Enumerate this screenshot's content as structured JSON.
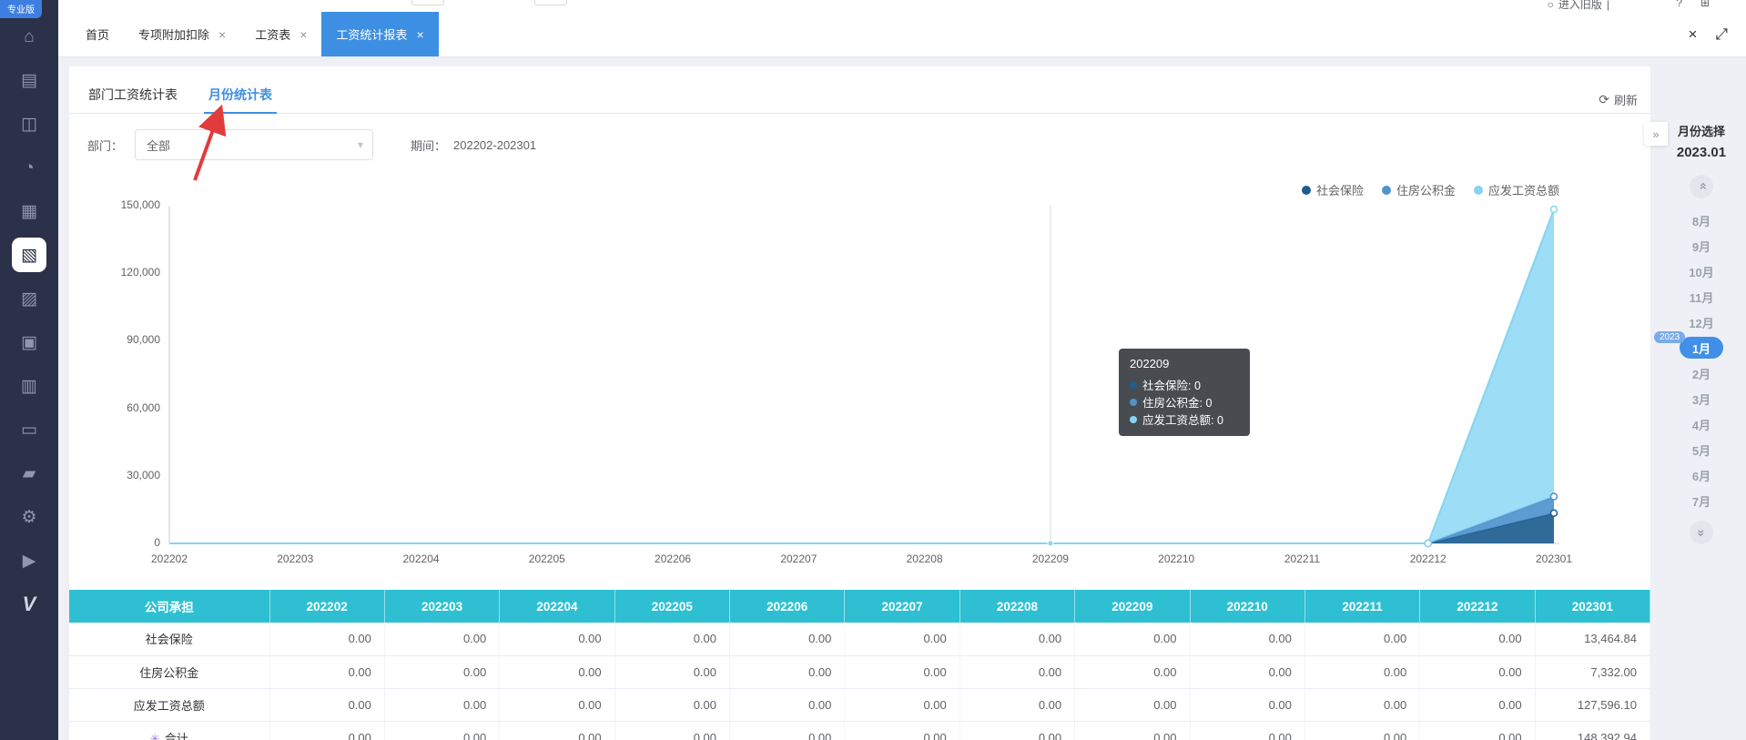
{
  "app": {
    "edition_badge": "专业版"
  },
  "top_bar": {
    "enter_old_version": "进入旧版",
    "divider": "|",
    "user_icon": "○",
    "help_icon": "?",
    "grid_icon": "⊞"
  },
  "sidebar": {
    "items": [
      {
        "name": "home",
        "glyph": "⌂"
      },
      {
        "name": "vouchers",
        "glyph": "▤"
      },
      {
        "name": "analytics",
        "glyph": "◫"
      },
      {
        "name": "tax-meter",
        "glyph": "◔"
      },
      {
        "name": "bank",
        "glyph": "▦"
      },
      {
        "name": "salary-reports",
        "glyph": "▧",
        "active": true
      },
      {
        "name": "inventory",
        "glyph": "▨"
      },
      {
        "name": "assets",
        "glyph": "▣"
      },
      {
        "name": "ledger",
        "glyph": "▥"
      },
      {
        "name": "invoice-device",
        "glyph": "▭"
      },
      {
        "name": "workbench",
        "glyph": "▰"
      },
      {
        "name": "settings",
        "glyph": "⚙"
      },
      {
        "name": "tutorial",
        "glyph": "▶"
      },
      {
        "name": "brand-v",
        "glyph": "V"
      }
    ]
  },
  "tab_bar": {
    "tabs": [
      {
        "name": "home",
        "label": "首页",
        "closable": false,
        "active": false
      },
      {
        "name": "special-deduction",
        "label": "专项附加扣除",
        "closable": true,
        "active": false
      },
      {
        "name": "salary-sheet",
        "label": "工资表",
        "closable": true,
        "active": false
      },
      {
        "name": "salary-report",
        "label": "工资统计报表",
        "closable": true,
        "active": true
      }
    ],
    "close_glyph": "×",
    "close_all_icon": "×",
    "fullscreen_icon": "⤢"
  },
  "sub_tabs": {
    "items": [
      {
        "name": "department-salary-stats",
        "label": "部门工资统计表",
        "active": false
      },
      {
        "name": "monthly-stats",
        "label": "月份统计表",
        "active": true
      }
    ]
  },
  "toolbar": {
    "refresh_icon": "⟳",
    "refresh_label": "刷新"
  },
  "filters": {
    "department_label": "部门：",
    "department_value": "全部",
    "dropdown_icon": "▾",
    "period_label": "期间：",
    "period_value": "202202-202301"
  },
  "chart_data": {
    "type": "area",
    "stacked": true,
    "title": "",
    "x": [
      "202202",
      "202203",
      "202204",
      "202205",
      "202206",
      "202207",
      "202208",
      "202209",
      "202210",
      "202211",
      "202212",
      "202301"
    ],
    "series": [
      {
        "name": "社会保险",
        "color": "#1d5d90",
        "values": [
          0,
          0,
          0,
          0,
          0,
          0,
          0,
          0,
          0,
          0,
          0,
          13464.84
        ]
      },
      {
        "name": "住房公积金",
        "color": "#4f94cd",
        "values": [
          0,
          0,
          0,
          0,
          0,
          0,
          0,
          0,
          0,
          0,
          0,
          7332.0
        ]
      },
      {
        "name": "应发工资总额",
        "color": "#85d4f2",
        "values": [
          0,
          0,
          0,
          0,
          0,
          0,
          0,
          0,
          0,
          0,
          0,
          127596.1
        ]
      }
    ],
    "ylim": [
      0,
      150000
    ],
    "yticks": [
      {
        "value": 0,
        "label": "0"
      },
      {
        "value": 30000,
        "label": "30,000"
      },
      {
        "value": 60000,
        "label": "60,000"
      },
      {
        "value": 90000,
        "label": "90,000"
      },
      {
        "value": 120000,
        "label": "120,000"
      },
      {
        "value": 150000,
        "label": "150,000"
      }
    ],
    "grid": false,
    "legend_position": "top-right",
    "hover_x": "202209",
    "tooltip": {
      "title": "202209",
      "rows": [
        {
          "name": "社会保险",
          "value": "0"
        },
        {
          "name": "住房公积金",
          "value": "0"
        },
        {
          "name": "应发工资总额",
          "value": "0"
        }
      ]
    }
  },
  "table": {
    "header": [
      "公司承担",
      "202202",
      "202203",
      "202204",
      "202205",
      "202206",
      "202207",
      "202208",
      "202209",
      "202210",
      "202211",
      "202212",
      "202301"
    ],
    "rows": [
      {
        "label": "社会保险",
        "values": [
          "0.00",
          "0.00",
          "0.00",
          "0.00",
          "0.00",
          "0.00",
          "0.00",
          "0.00",
          "0.00",
          "0.00",
          "0.00",
          "13,464.84"
        ]
      },
      {
        "label": "住房公积金",
        "values": [
          "0.00",
          "0.00",
          "0.00",
          "0.00",
          "0.00",
          "0.00",
          "0.00",
          "0.00",
          "0.00",
          "0.00",
          "0.00",
          "7,332.00"
        ]
      },
      {
        "label": "应发工资总额",
        "values": [
          "0.00",
          "0.00",
          "0.00",
          "0.00",
          "0.00",
          "0.00",
          "0.00",
          "0.00",
          "0.00",
          "0.00",
          "0.00",
          "127,596.10"
        ]
      },
      {
        "label": "合计",
        "icon_glyph": "✳",
        "values": [
          "0.00",
          "0.00",
          "0.00",
          "0.00",
          "0.00",
          "0.00",
          "0.00",
          "0.00",
          "0.00",
          "0.00",
          "0.00",
          "148,392.94"
        ]
      }
    ]
  },
  "month_picker": {
    "collapse_icon": "»",
    "title": "月份选择",
    "current": "2023.01",
    "scroll_icon": "»",
    "year_badge": "2023",
    "months": [
      "8月",
      "9月",
      "10月",
      "11月",
      "12月",
      "1月",
      "2月",
      "3月",
      "4月",
      "5月",
      "6月",
      "7月"
    ],
    "active_index": 5
  }
}
